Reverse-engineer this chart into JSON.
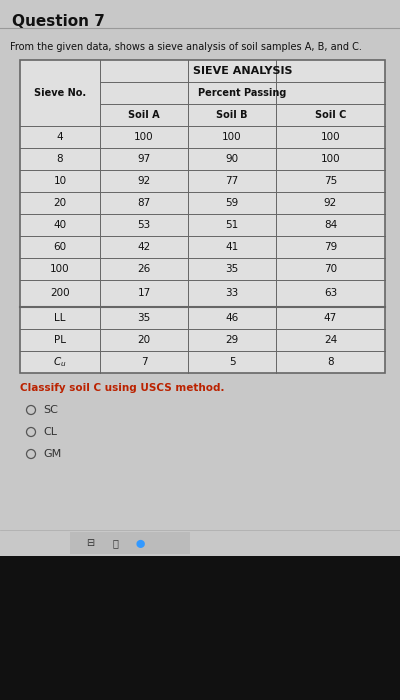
{
  "title": "Question 7",
  "subtitle": "From the given data, shows a sieve analysis of soil samples A, B, and C.",
  "table_title": "SIEVE ANALYSIS",
  "col_header1": "Percent Passing",
  "col_labels": [
    "Sieve No.",
    "Soil A",
    "Soil B",
    "Soil C"
  ],
  "sieve_rows": [
    [
      "4",
      100,
      100,
      100
    ],
    [
      "8",
      97,
      90,
      100
    ],
    [
      "10",
      92,
      77,
      75
    ],
    [
      "20",
      87,
      59,
      92
    ],
    [
      "40",
      53,
      51,
      84
    ],
    [
      "60",
      42,
      41,
      79
    ],
    [
      "100",
      26,
      35,
      70
    ],
    [
      "200",
      17,
      33,
      63
    ]
  ],
  "extra_rows": [
    [
      "LL",
      35,
      46,
      47
    ],
    [
      "PL",
      20,
      29,
      24
    ],
    [
      "Cu",
      7,
      5,
      8
    ]
  ],
  "question_text": "Classify soil C using USCS method.",
  "options": [
    "SC",
    "CL",
    "GM"
  ],
  "bg_color": "#c8c8c8",
  "table_bg": "#e0e0e0",
  "question_color": "#bb2200",
  "header_color": "#111111",
  "cell_text_color": "#111111",
  "bottom_bg": "#111111",
  "line_color": "#666666",
  "title_fs": 11,
  "subtitle_fs": 7,
  "table_title_fs": 8,
  "header_fs": 7,
  "cell_fs": 7.5
}
